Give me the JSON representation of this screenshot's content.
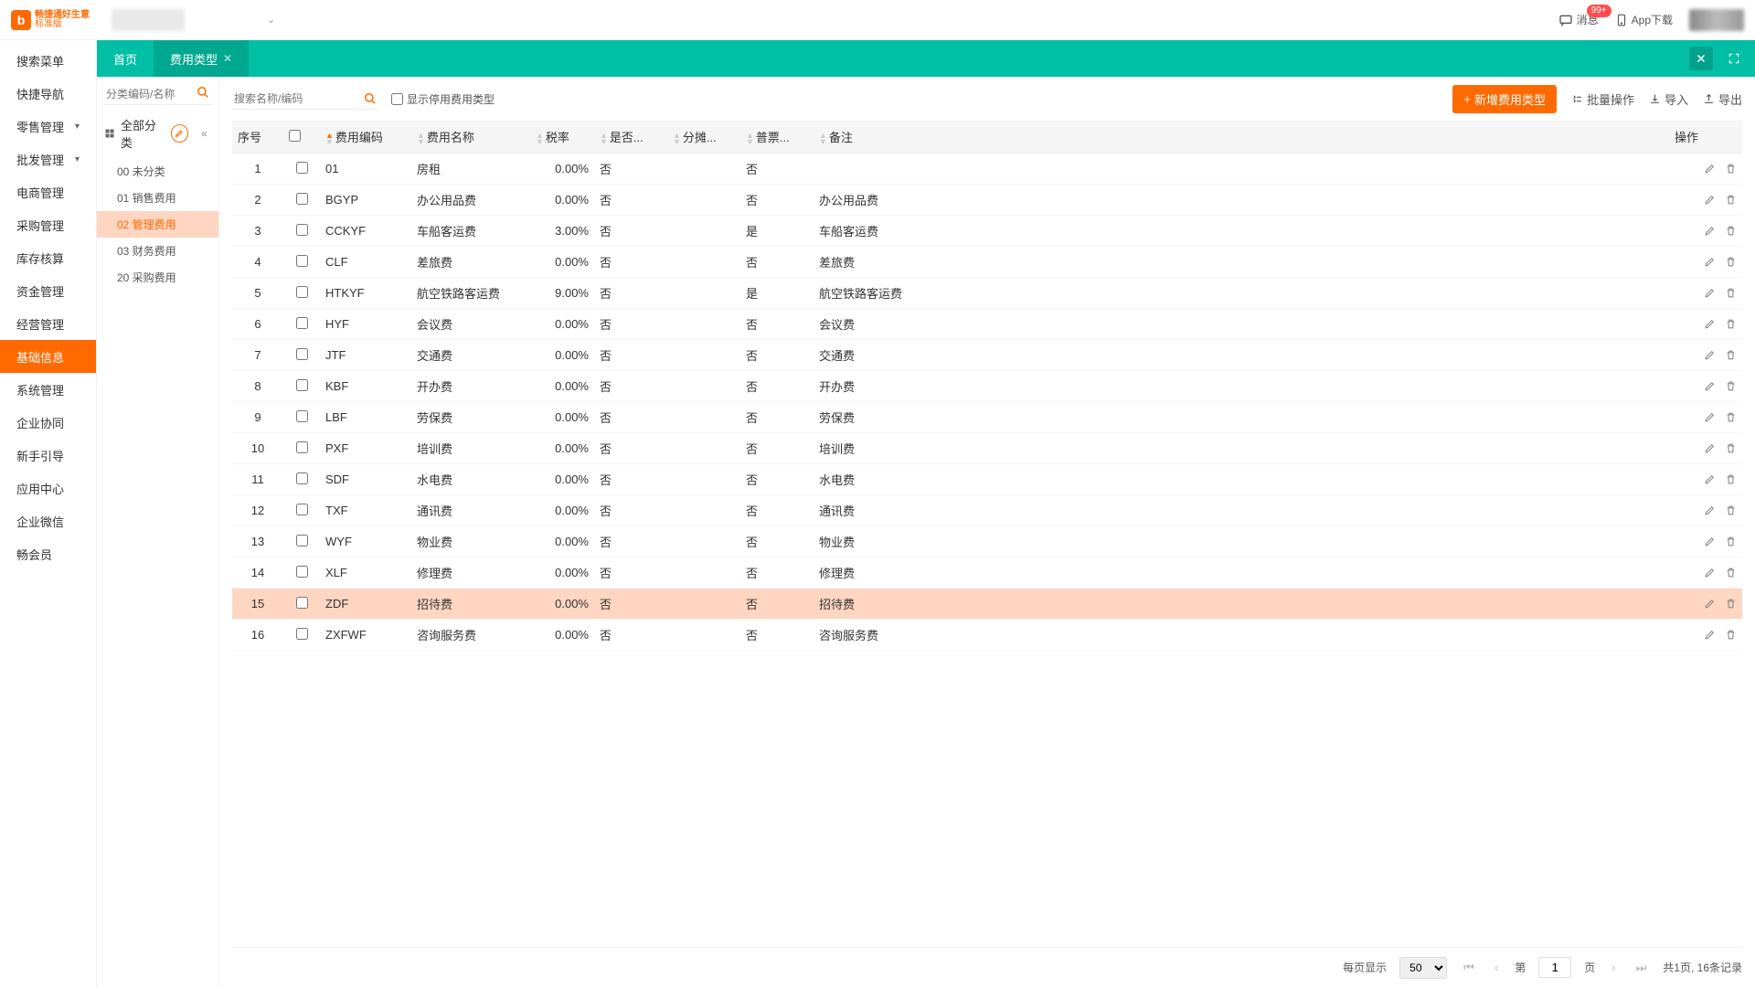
{
  "header": {
    "logo_main": "畅捷通好生意",
    "logo_sub": "标准版",
    "messages_label": "消息",
    "messages_badge": "99+",
    "app_download": "App下载"
  },
  "sidebar": {
    "items": [
      {
        "label": "搜索菜单",
        "hasChevron": false
      },
      {
        "label": "快捷导航",
        "hasChevron": false
      },
      {
        "label": "零售管理",
        "hasChevron": true
      },
      {
        "label": "批发管理",
        "hasChevron": true
      },
      {
        "label": "电商管理",
        "hasChevron": false
      },
      {
        "label": "采购管理",
        "hasChevron": false
      },
      {
        "label": "库存核算",
        "hasChevron": false
      },
      {
        "label": "资金管理",
        "hasChevron": false
      },
      {
        "label": "经营管理",
        "hasChevron": false
      },
      {
        "label": "基础信息",
        "hasChevron": false,
        "active": true
      },
      {
        "label": "系统管理",
        "hasChevron": false
      },
      {
        "label": "企业协同",
        "hasChevron": false
      },
      {
        "label": "新手引导",
        "hasChevron": false
      },
      {
        "label": "应用中心",
        "hasChevron": false
      },
      {
        "label": "企业微信",
        "hasChevron": false
      },
      {
        "label": "畅会员",
        "hasChevron": false
      }
    ]
  },
  "tabs": {
    "items": [
      {
        "label": "首页",
        "closable": false
      },
      {
        "label": "费用类型",
        "closable": true,
        "active": true
      }
    ]
  },
  "category": {
    "search_placeholder": "分类编码/名称",
    "all_label": "全部分类",
    "items": [
      {
        "label": "00 未分类"
      },
      {
        "label": "01 销售费用"
      },
      {
        "label": "02 管理费用",
        "active": true
      },
      {
        "label": "03 财务费用"
      },
      {
        "label": "20 采购费用"
      }
    ]
  },
  "toolbar": {
    "search_placeholder": "搜索名称/编码",
    "show_disabled_label": "显示停用费用类型",
    "add_label": "新增费用类型",
    "batch_label": "批量操作",
    "import_label": "导入",
    "export_label": "导出"
  },
  "table": {
    "columns": {
      "seq": "序号",
      "code": "费用编码",
      "name": "费用名称",
      "rate": "税率",
      "isX": "是否...",
      "share": "分摊...",
      "ticket": "普票...",
      "remark": "备注",
      "op": "操作"
    },
    "rows": [
      {
        "seq": 1,
        "code": "01",
        "name": "房租",
        "rate": "0.00%",
        "isX": "否",
        "ticket": "否",
        "remark": ""
      },
      {
        "seq": 2,
        "code": "BGYP",
        "name": "办公用品费",
        "rate": "0.00%",
        "isX": "否",
        "ticket": "否",
        "remark": "办公用品费"
      },
      {
        "seq": 3,
        "code": "CCKYF",
        "name": "车船客运费",
        "rate": "3.00%",
        "isX": "否",
        "ticket": "是",
        "remark": "车船客运费"
      },
      {
        "seq": 4,
        "code": "CLF",
        "name": "差旅费",
        "rate": "0.00%",
        "isX": "否",
        "ticket": "否",
        "remark": "差旅费"
      },
      {
        "seq": 5,
        "code": "HTKYF",
        "name": "航空铁路客运费",
        "rate": "9.00%",
        "isX": "否",
        "ticket": "是",
        "remark": "航空铁路客运费"
      },
      {
        "seq": 6,
        "code": "HYF",
        "name": "会议费",
        "rate": "0.00%",
        "isX": "否",
        "ticket": "否",
        "remark": "会议费"
      },
      {
        "seq": 7,
        "code": "JTF",
        "name": "交通费",
        "rate": "0.00%",
        "isX": "否",
        "ticket": "否",
        "remark": "交通费"
      },
      {
        "seq": 8,
        "code": "KBF",
        "name": "开办费",
        "rate": "0.00%",
        "isX": "否",
        "ticket": "否",
        "remark": "开办费"
      },
      {
        "seq": 9,
        "code": "LBF",
        "name": "劳保费",
        "rate": "0.00%",
        "isX": "否",
        "ticket": "否",
        "remark": "劳保费"
      },
      {
        "seq": 10,
        "code": "PXF",
        "name": "培训费",
        "rate": "0.00%",
        "isX": "否",
        "ticket": "否",
        "remark": "培训费"
      },
      {
        "seq": 11,
        "code": "SDF",
        "name": "水电费",
        "rate": "0.00%",
        "isX": "否",
        "ticket": "否",
        "remark": "水电费"
      },
      {
        "seq": 12,
        "code": "TXF",
        "name": "通讯费",
        "rate": "0.00%",
        "isX": "否",
        "ticket": "否",
        "remark": "通讯费"
      },
      {
        "seq": 13,
        "code": "WYF",
        "name": "物业费",
        "rate": "0.00%",
        "isX": "否",
        "ticket": "否",
        "remark": "物业费"
      },
      {
        "seq": 14,
        "code": "XLF",
        "name": "修理费",
        "rate": "0.00%",
        "isX": "否",
        "ticket": "否",
        "remark": "修理费"
      },
      {
        "seq": 15,
        "code": "ZDF",
        "name": "招待费",
        "rate": "0.00%",
        "isX": "否",
        "ticket": "否",
        "remark": "招待费",
        "highlight": true
      },
      {
        "seq": 16,
        "code": "ZXFWF",
        "name": "咨询服务费",
        "rate": "0.00%",
        "isX": "否",
        "ticket": "否",
        "remark": "咨询服务费"
      }
    ]
  },
  "pager": {
    "per_page_label": "每页显示",
    "per_page_value": "50",
    "page_prefix": "第",
    "page_value": "1",
    "page_suffix": "页",
    "total_text": "共1页, 16条记录"
  }
}
